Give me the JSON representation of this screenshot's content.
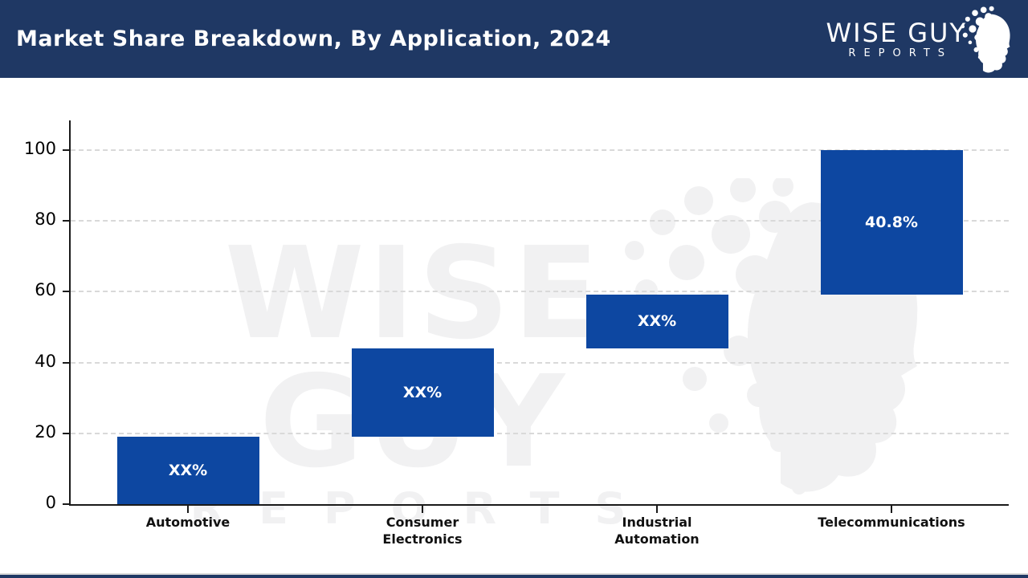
{
  "header": {
    "title": "Market Share Breakdown, By Application, 2024",
    "logo": {
      "line1": "WISE GUY",
      "line2": "REPORTS"
    }
  },
  "watermark": {
    "line1": "WISE GUY",
    "line2": "REPORTS"
  },
  "chart_data": {
    "type": "bar",
    "subtype": "waterfall",
    "title": "Market Share Breakdown, By Application, 2024",
    "categories": [
      "Automotive",
      "Consumer Electronics",
      "Industrial Automation",
      "Telecommunications"
    ],
    "segments": [
      {
        "category": "Automotive",
        "category_lines": [
          "Automotive"
        ],
        "start": 0,
        "end": 19,
        "label": "XX%"
      },
      {
        "category": "Consumer Electronics",
        "category_lines": [
          "Consumer",
          "Electronics"
        ],
        "start": 19,
        "end": 44,
        "label": "XX%"
      },
      {
        "category": "Industrial Automation",
        "category_lines": [
          "Industrial",
          "Automation"
        ],
        "start": 44,
        "end": 59.2,
        "label": "XX%"
      },
      {
        "category": "Telecommunications",
        "category_lines": [
          "Telecommunications"
        ],
        "start": 59.2,
        "end": 100,
        "label": "40.8%"
      }
    ],
    "xlabel": "",
    "ylabel": "",
    "ylim": [
      0,
      100
    ],
    "yticks": [
      0,
      20,
      40,
      60,
      80,
      100
    ],
    "grid": "horizontal-dashed",
    "legend": "none"
  },
  "colors": {
    "header_bg": "#1f3864",
    "bar": "#0d47a1",
    "bar_label": "#ffffff",
    "grid": "#d9d9d9",
    "axis": "#1a1a1a",
    "tick_label": "#000000",
    "watermark": "#f1f1f2",
    "footer": "#1f3864"
  }
}
